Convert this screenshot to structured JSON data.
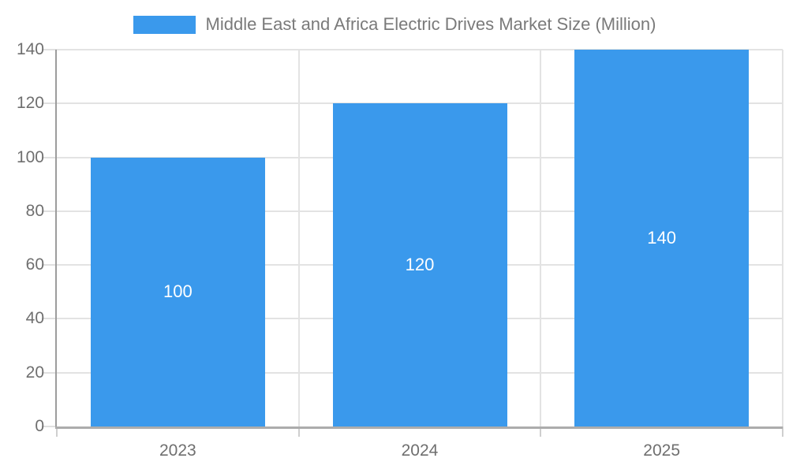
{
  "chart_data": {
    "type": "bar",
    "title": "Middle East and Africa Electric Drives Market Size (Million)",
    "categories": [
      "2023",
      "2024",
      "2025"
    ],
    "values": [
      100,
      120,
      140
    ],
    "data_labels": [
      "100",
      "120",
      "140"
    ],
    "xlabel": "",
    "ylabel": "",
    "ylim": [
      0,
      140
    ],
    "yticks": [
      0,
      20,
      40,
      60,
      80,
      100,
      120,
      140
    ],
    "grid": true,
    "legend_position": "top-center",
    "colors": {
      "bar": "#3A99EC",
      "gridline": "#E3E3E3",
      "y_tick": "#E0E0E0",
      "x_tick": "#CFCFCF",
      "y_axis_line": "#9C9C9C",
      "x_axis_line": "#ACACAC",
      "tick_label_text": "#6F6F6F",
      "title_text": "#7A7A7A",
      "bar_label_text": "#FFFFFF",
      "background": "#FFFFFF"
    }
  }
}
